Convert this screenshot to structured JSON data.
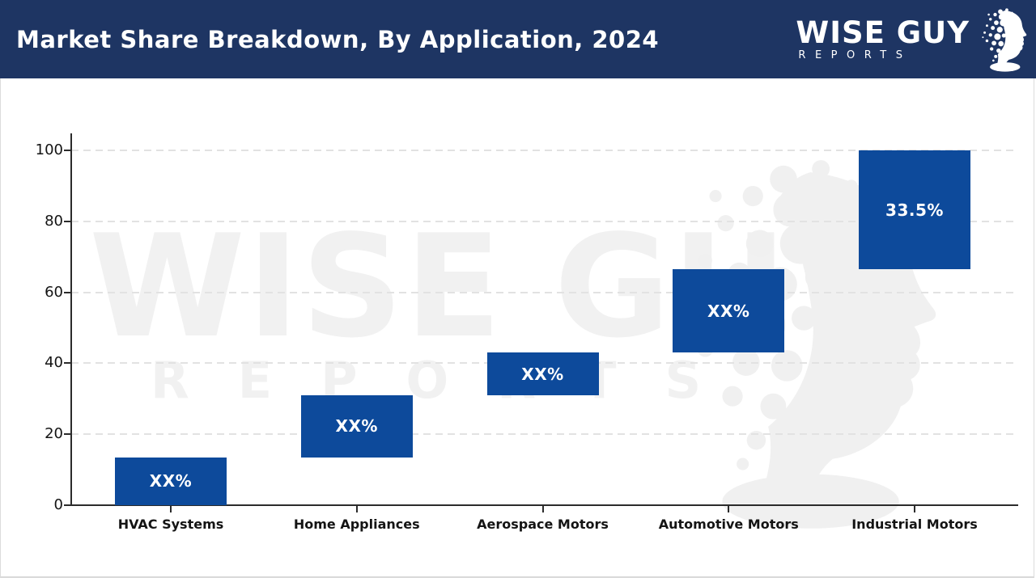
{
  "header": {
    "title": "Market Share Breakdown, By Application, 2024",
    "bg_color": "#1e3563",
    "logo": {
      "line1": "WISE GUY",
      "line2": "REPORTS"
    }
  },
  "watermark": {
    "line1": "WISE GUY",
    "line2": "REPORTS"
  },
  "icons": {
    "logo_head": "dotted-head-profile-icon",
    "watermark_head": "dotted-head-profile-icon"
  },
  "chart_data": {
    "type": "bar",
    "subtype": "floating-waterfall",
    "title": "Market Share Breakdown, By Application, 2024",
    "categories": [
      "HVAC Systems",
      "Home Appliances",
      "Aerospace Motors",
      "Automotive Motors",
      "Industrial Motors"
    ],
    "segments": [
      {
        "category": "HVAC Systems",
        "start": 0,
        "end": 13.5,
        "label": "XX%"
      },
      {
        "category": "Home Appliances",
        "start": 13.5,
        "end": 31.0,
        "label": "XX%"
      },
      {
        "category": "Aerospace Motors",
        "start": 31.0,
        "end": 43.0,
        "label": "XX%"
      },
      {
        "category": "Automotive Motors",
        "start": 43.0,
        "end": 66.5,
        "label": "XX%"
      },
      {
        "category": "Industrial Motors",
        "start": 66.5,
        "end": 100.0,
        "label": "33.5%"
      }
    ],
    "y_ticks": [
      0,
      20,
      40,
      60,
      80,
      100
    ],
    "ylim": [
      0,
      100
    ],
    "xlabel": "",
    "ylabel": "",
    "legend": "none",
    "grid": "horizontal-dashed",
    "bar_color": "#0d4a9b",
    "grid_color": "#e2e2e2",
    "watermark_color": "#f1f1f1"
  }
}
